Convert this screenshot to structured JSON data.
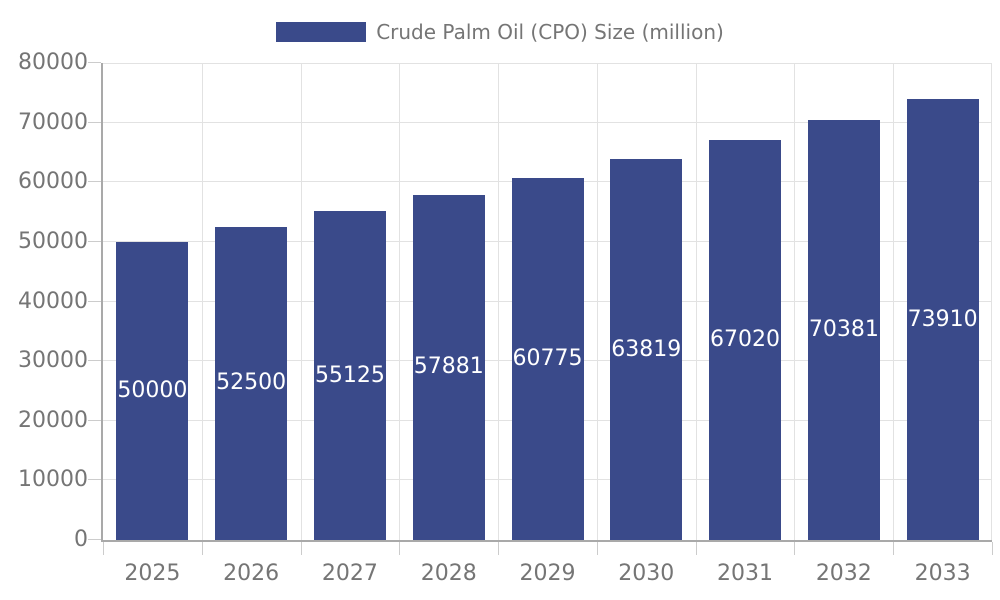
{
  "legend": {
    "label": "Crude Palm Oil (CPO) Size (million)",
    "position": "top"
  },
  "colors": {
    "bar": "#3A4A8A",
    "grid": "#E2E2E2",
    "axis": "#A9A9A9",
    "tick": "#CCCCCC",
    "text": "#757575",
    "value_label": "#FFFFFF",
    "background": "#FFFFFF"
  },
  "chart_data": {
    "type": "bar",
    "title": "",
    "series_name": "Crude Palm Oil (CPO) Size (million)",
    "categories": [
      "2025",
      "2026",
      "2027",
      "2028",
      "2029",
      "2030",
      "2031",
      "2032",
      "2033"
    ],
    "values": [
      50000,
      52500,
      55125,
      57881,
      60775,
      63819,
      67020,
      70381,
      73910
    ],
    "bar_labels": [
      50000,
      52500,
      55125,
      57881,
      60775,
      63819,
      67020,
      70381,
      73910
    ],
    "xlabel": "",
    "ylabel": "",
    "ylim": [
      0,
      80000
    ],
    "yticks": [
      0,
      10000,
      20000,
      30000,
      40000,
      50000,
      60000,
      70000,
      80000
    ],
    "grid": true,
    "legend_position": "top"
  }
}
